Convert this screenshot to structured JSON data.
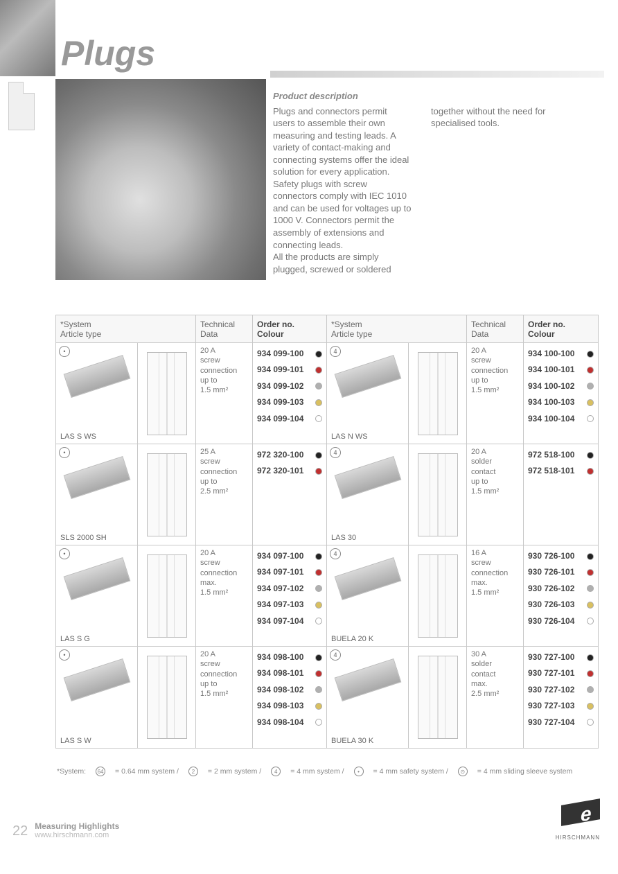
{
  "page": {
    "title": "Plugs",
    "number": "22",
    "footer_title": "Measuring Highlights",
    "footer_url": "www.hirschmann.com",
    "brand": "HIRSCHMANN"
  },
  "desc": {
    "heading": "Product description",
    "col1": "Plugs and connectors permit users to assemble their own measuring and testing leads. A variety of contact-making and connecting systems offer the ideal solution for every application. Safety plugs with screw connectors comply with IEC 1010 and can be used for voltages up to 1000 V. Connectors permit the assembly of extensions and connecting leads.\nAll the products are simply plugged, screwed or soldered",
    "col2": "together without the need for specialised tools."
  },
  "headers": {
    "system1": "*System",
    "system2": "Article type",
    "tech": "Technical",
    "tech2": "Data",
    "order1": "Order no.",
    "order2": "Colour"
  },
  "colors": {
    "black": "#222222",
    "red": "#c03030",
    "grey": "#b0b0b0",
    "yellow": "#d9c060",
    "none": "#ffffff",
    "blue": "#6080b0",
    "green": "#60a060"
  },
  "left": [
    {
      "sys": "•",
      "name": "LAS S WS",
      "tech": "20 A\nscrew\nconnection\nup to\n1.5 mm²",
      "orders": [
        [
          "934 099-100",
          "black"
        ],
        [
          "934 099-101",
          "red"
        ],
        [
          "934 099-102",
          "grey"
        ],
        [
          "934 099-103",
          "yellow"
        ],
        [
          "934 099-104",
          "none"
        ]
      ]
    },
    {
      "sys": "•",
      "name": "SLS 2000 SH",
      "tech": "25 A\nscrew\nconnection\nup to\n2.5 mm²",
      "orders": [
        [
          "972 320-100",
          "black"
        ],
        [
          "972 320-101",
          "red"
        ]
      ]
    },
    {
      "sys": "•",
      "name": "LAS S G",
      "tech": "20 A\nscrew\nconnection\nmax.\n1.5 mm²",
      "orders": [
        [
          "934 097-100",
          "black"
        ],
        [
          "934 097-101",
          "red"
        ],
        [
          "934 097-102",
          "grey"
        ],
        [
          "934 097-103",
          "yellow"
        ],
        [
          "934 097-104",
          "none"
        ]
      ]
    },
    {
      "sys": "•",
      "name": "LAS S W",
      "tech": "20 A\nscrew\nconnection\nup to\n1.5 mm²",
      "orders": [
        [
          "934 098-100",
          "black"
        ],
        [
          "934 098-101",
          "red"
        ],
        [
          "934 098-102",
          "grey"
        ],
        [
          "934 098-103",
          "yellow"
        ],
        [
          "934 098-104",
          "none"
        ]
      ]
    }
  ],
  "right": [
    {
      "sys": "4",
      "name": "LAS N WS",
      "tech": "20 A\nscrew\nconnection\nup to\n1.5 mm²",
      "orders": [
        [
          "934 100-100",
          "black"
        ],
        [
          "934 100-101",
          "red"
        ],
        [
          "934 100-102",
          "grey"
        ],
        [
          "934 100-103",
          "yellow"
        ],
        [
          "934 100-104",
          "none"
        ]
      ]
    },
    {
      "sys": "4",
      "name": "LAS 30",
      "tech": "20 A\nsolder\ncontact\nup to\n1.5 mm²",
      "orders": [
        [
          "972 518-100",
          "black"
        ],
        [
          "972 518-101",
          "red"
        ]
      ]
    },
    {
      "sys": "4",
      "name": "BUELA 20 K",
      "tech": "16 A\nscrew\nconnection\nmax.\n1.5 mm²",
      "orders": [
        [
          "930 726-100",
          "black"
        ],
        [
          "930 726-101",
          "red"
        ],
        [
          "930 726-102",
          "grey"
        ],
        [
          "930 726-103",
          "yellow"
        ],
        [
          "930 726-104",
          "none"
        ]
      ]
    },
    {
      "sys": "4",
      "name": "BUELA 30 K",
      "tech": "30 A\nsolder\ncontact\nmax.\n2.5 mm²",
      "orders": [
        [
          "930 727-100",
          "black"
        ],
        [
          "930 727-101",
          "red"
        ],
        [
          "930 727-102",
          "grey"
        ],
        [
          "930 727-103",
          "yellow"
        ],
        [
          "930 727-104",
          "none"
        ]
      ]
    }
  ],
  "legend": {
    "prefix": "*System:",
    "items": [
      [
        "64",
        "= 0.64 mm system /"
      ],
      [
        "2",
        "= 2 mm system /"
      ],
      [
        "4",
        "= 4 mm system /"
      ],
      [
        "•",
        "= 4 mm safety system /"
      ],
      [
        "⊙",
        "= 4 mm sliding sleeve system"
      ]
    ]
  }
}
